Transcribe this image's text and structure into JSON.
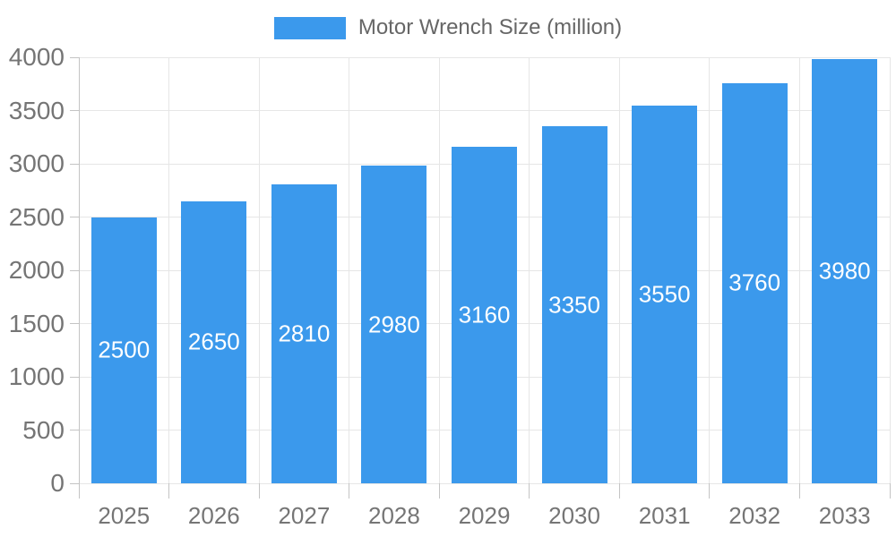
{
  "chart_data": {
    "type": "bar",
    "title": "",
    "legend": "Motor Wrench Size (million)",
    "legend_position": "top-center",
    "categories": [
      "2025",
      "2026",
      "2027",
      "2028",
      "2029",
      "2030",
      "2031",
      "2032",
      "2033"
    ],
    "series": [
      {
        "name": "Motor Wrench Size (million)",
        "values": [
          2500,
          2650,
          2810,
          2980,
          3160,
          3350,
          3550,
          3760,
          3980
        ]
      }
    ],
    "bar_value_labels": [
      "2500",
      "2650",
      "2810",
      "2980",
      "3160",
      "3350",
      "3550",
      "3760",
      "3980"
    ],
    "xlabel": "",
    "ylabel": "",
    "ylim": [
      0,
      4000
    ],
    "yticks": [
      0,
      500,
      1000,
      1500,
      2000,
      2500,
      3000,
      3500,
      4000
    ],
    "grid": true
  },
  "colors": {
    "bar": "#3B99EC",
    "grid": "#E6E6E6",
    "axis": "#C4C4C4",
    "axis_label": "#757575",
    "legend_text": "#666666",
    "bar_label": "#FFFFFF",
    "background": "#FFFFFF"
  }
}
